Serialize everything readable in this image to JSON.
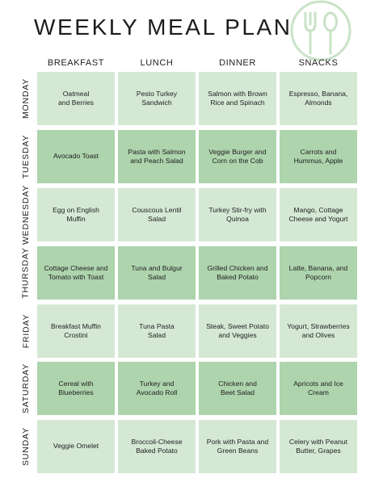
{
  "title": "WEEKLY MEAL PLAN",
  "logo_icon": "fork-and-spoon-icon",
  "colors": {
    "light_cell": "#d5e8d4",
    "dark_cell": "#aed4ad",
    "logo": "#c9e2c7"
  },
  "columns": [
    "BREAKFAST",
    "LUNCH",
    "DINNER",
    "SNACKS"
  ],
  "days": [
    {
      "day": "MONDAY",
      "meals": [
        "Oatmeal\nand Berries",
        "Pesto Turkey\nSandwich",
        "Salmon with Brown\nRice and Spinach",
        "Espresso, Banana,\nAlmonds"
      ]
    },
    {
      "day": "TUESDAY",
      "meals": [
        "Avocado Toast",
        "Pasta with Salmon\nand Peach Salad",
        "Veggie Burger and\nCorn on the Cob",
        "Carrots and\nHummus, Apple"
      ]
    },
    {
      "day": "WEDNESDAY",
      "meals": [
        "Egg on English\nMuffin",
        "Couscous Lentil\nSalad",
        "Turkey Stir-fry with\nQuinoa",
        "Mango, Cottage\nCheese and Yogurt"
      ]
    },
    {
      "day": "THURSDAY",
      "meals": [
        "Cottage Cheese and\nTomato with Toast",
        "Tuna and Bulgur\nSalad",
        "Grilled Chicken and\nBaked Potato",
        "Latte, Banana, and\nPopcorn"
      ]
    },
    {
      "day": "FRIDAY",
      "meals": [
        "Breakfast Muffin\nCrostini",
        "Tuna Pasta\nSalad",
        "Steak, Sweet Potato\nand Veggies",
        "Yogurt, Strawberries\nand Olives"
      ]
    },
    {
      "day": "SATURDAY",
      "meals": [
        "Cereal with\nBlueberries",
        "Turkey and\nAvocado Roll",
        "Chicken and\nBeet Salad",
        "Apricots and Ice\nCream"
      ]
    },
    {
      "day": "SUNDAY",
      "meals": [
        "Veggie Omelet",
        "Broccoli-Cheese\nBaked Potato",
        "Pork with Pasta and\nGreen Beans",
        "Celery with Peanut\nButter, Grapes"
      ]
    }
  ]
}
